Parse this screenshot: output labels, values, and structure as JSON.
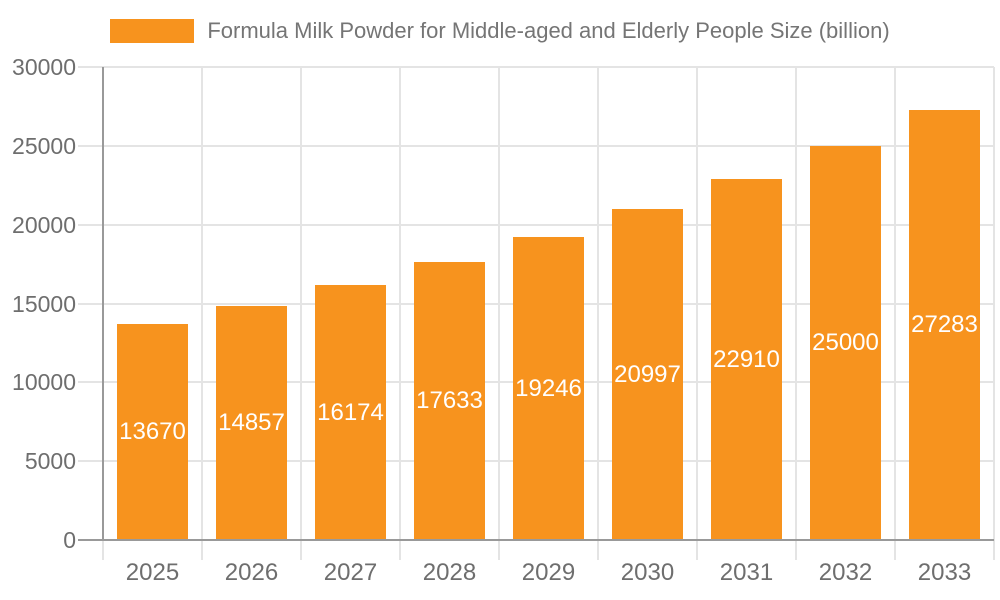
{
  "legend": {
    "label": "Formula Milk Powder for Middle-aged and Elderly People Size (billion)"
  },
  "chart_data": {
    "type": "bar",
    "title": "",
    "xlabel": "",
    "ylabel": "",
    "categories": [
      "2025",
      "2026",
      "2027",
      "2028",
      "2029",
      "2030",
      "2031",
      "2032",
      "2033"
    ],
    "values": [
      13670,
      14857,
      16174,
      17633,
      19246,
      20997,
      22910,
      25000,
      27283
    ],
    "series_name": "Formula Milk Powder for Middle-aged and Elderly People Size (billion)",
    "value_labels_shown": true,
    "ylim": [
      0,
      30000
    ],
    "yticks": [
      0,
      5000,
      10000,
      15000,
      20000,
      25000,
      30000
    ],
    "grid": true,
    "legend_position": "top-center",
    "colors": {
      "bar": "#f7931e",
      "value_label": "#ffffff",
      "axis_line": "#999999",
      "gridline": "#e4e4e4",
      "tick_label": "#6e6e6e",
      "legend_text": "#757575"
    }
  }
}
